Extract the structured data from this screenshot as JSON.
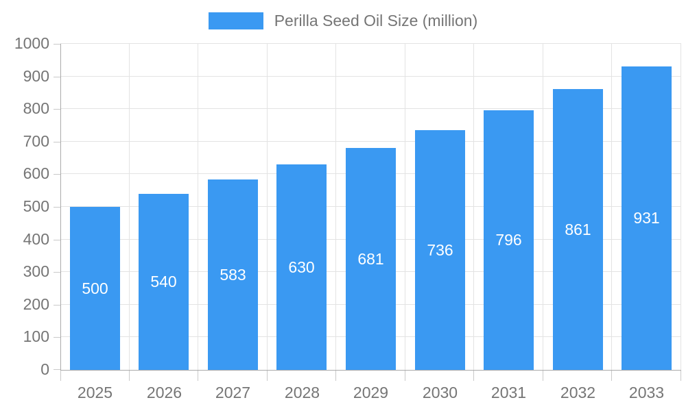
{
  "legend": {
    "label": "Perilla Seed Oil Size (million)"
  },
  "chart_data": {
    "type": "bar",
    "title": "Perilla Seed Oil Size (million)",
    "categories": [
      "2025",
      "2026",
      "2027",
      "2028",
      "2029",
      "2030",
      "2031",
      "2032",
      "2033"
    ],
    "values": [
      500,
      540,
      583,
      630,
      681,
      736,
      796,
      861,
      931
    ],
    "xlabel": "",
    "ylabel": "",
    "ylim": [
      0,
      1000
    ],
    "ytick_step": 100,
    "yticks": [
      0,
      100,
      200,
      300,
      400,
      500,
      600,
      700,
      800,
      900,
      1000
    ],
    "grid": true,
    "legend_position": "top-center",
    "value_labels": "inside-center"
  },
  "colors": {
    "bar": "#3a99f2",
    "grid": "#e3e3e3",
    "axis": "#aaaaaa",
    "tick": "#c9c9c9",
    "text": "#757575",
    "value_label": "#ffffff",
    "background": "#ffffff"
  }
}
